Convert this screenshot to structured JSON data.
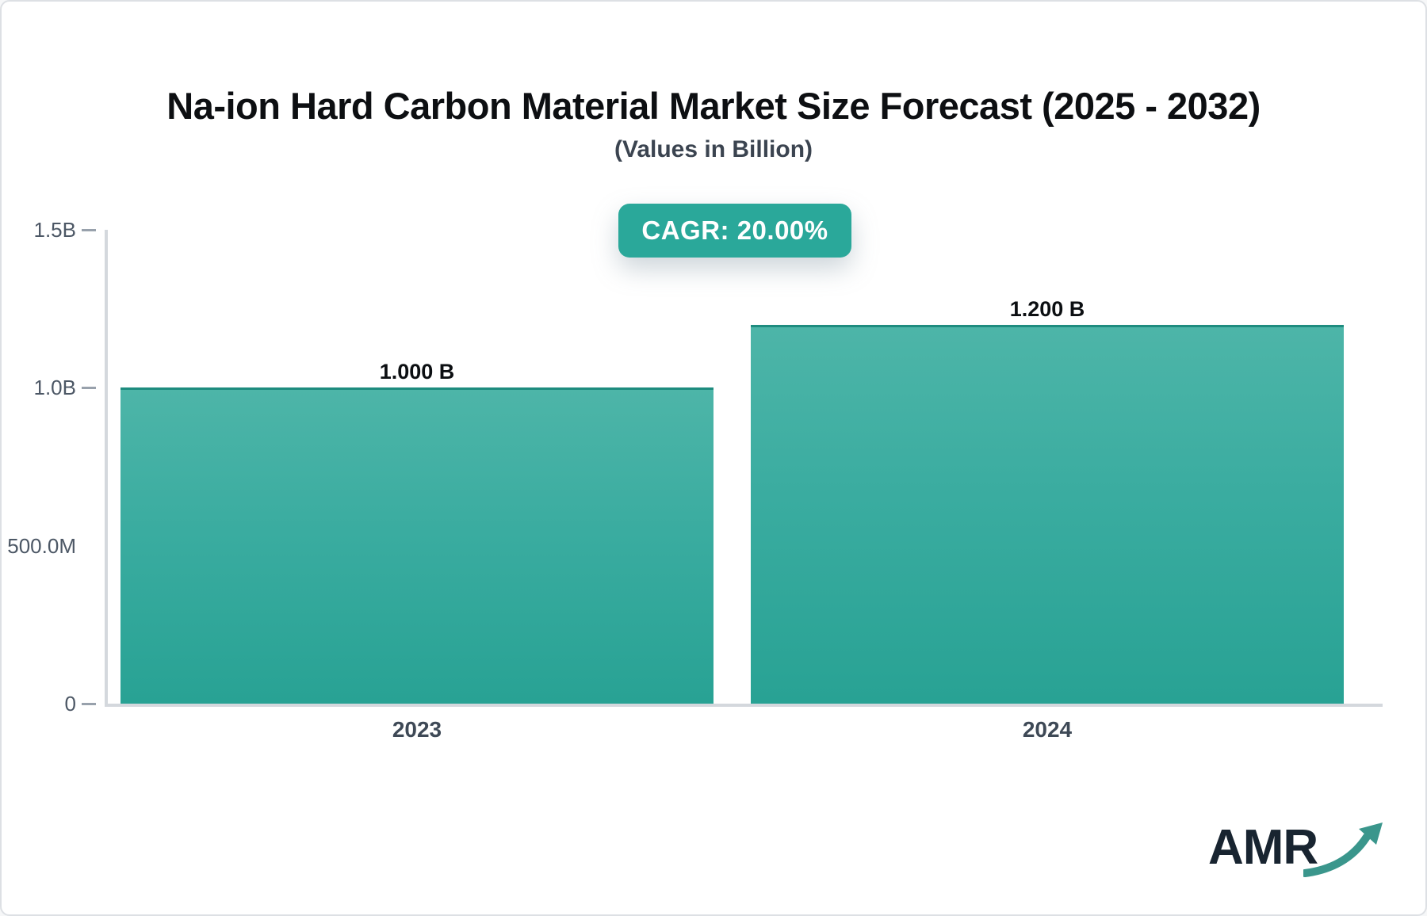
{
  "page": {
    "title": "Na-ion Hard Carbon Material Market Size Forecast (2025 - 2032)",
    "subtitle": "(Values in Billion)"
  },
  "badge": {
    "label": "CAGR: 20.00%",
    "bg_color": "#2aa89a",
    "text_color": "#ffffff"
  },
  "chart_data": {
    "type": "bar",
    "title": "Na-ion Hard Carbon Material Market Size Forecast (2025 - 2032)",
    "subtitle": "(Values in Billion)",
    "cagr_label": "CAGR: 20.00%",
    "categories": [
      "2023",
      "2024"
    ],
    "values": [
      1.0,
      1.2
    ],
    "value_labels": [
      "1.000 B",
      "1.200 B"
    ],
    "unit": "Billion",
    "ylim": [
      0,
      1.5
    ],
    "yticks": [
      {
        "label": "1.5B",
        "value": 1.5,
        "dash": true
      },
      {
        "label": "1.0B",
        "value": 1.0,
        "dash": true
      },
      {
        "label": "500.0M",
        "value": 0.5,
        "dash": false
      },
      {
        "label": "0",
        "value": 0,
        "dash": true
      }
    ],
    "grid": false,
    "legend_position": "none",
    "bar_color_top": "#4db5a8",
    "bar_color_bottom": "#28a294",
    "bar_border_color": "#1e8c7f"
  },
  "logo": {
    "text": "AMR",
    "text_color": "#182430",
    "arrow_color": "#3a968c"
  }
}
